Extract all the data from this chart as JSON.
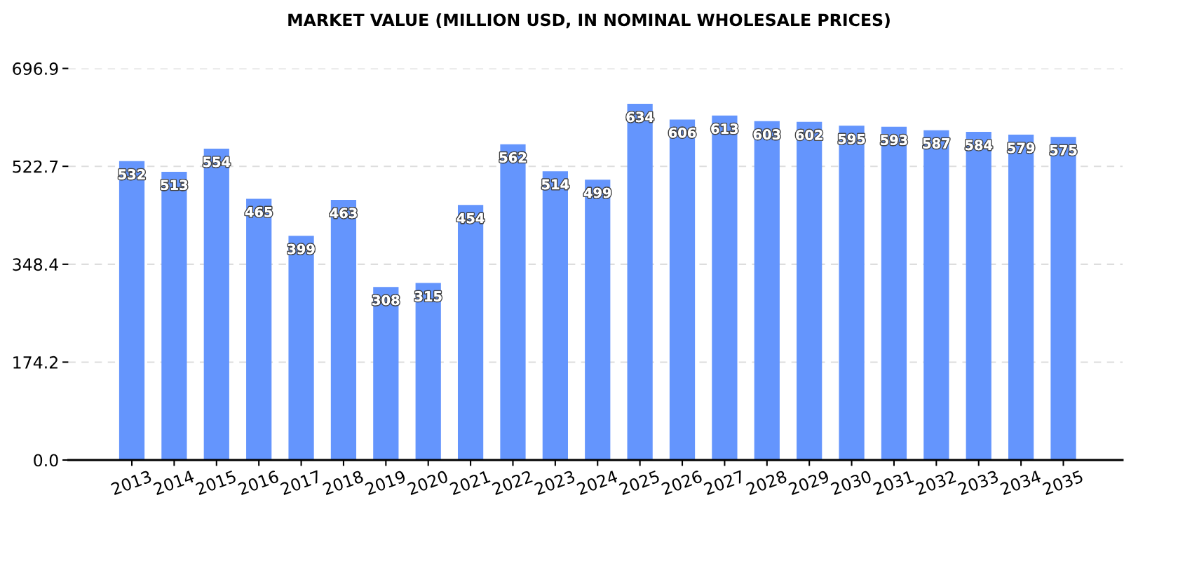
{
  "chart_data": {
    "type": "bar",
    "title": "MARKET VALUE (MILLION USD, IN NOMINAL WHOLESALE PRICES)",
    "categories": [
      "2013",
      "2014",
      "2015",
      "2016",
      "2017",
      "2018",
      "2019",
      "2020",
      "2021",
      "2022",
      "2023",
      "2024",
      "2025",
      "2026",
      "2027",
      "2028",
      "2029",
      "2030",
      "2031",
      "2032",
      "2033",
      "2034",
      "2035"
    ],
    "values": [
      532,
      513,
      554,
      465,
      399,
      463,
      308,
      315,
      454,
      562,
      514,
      499,
      634,
      606,
      613,
      603,
      602,
      595,
      593,
      587,
      584,
      579,
      575
    ],
    "color": "#6495fd",
    "ylim": [
      0,
      696.9
    ],
    "yticks": [
      {
        "value": 0,
        "label": "0.0"
      },
      174.2,
      348.4,
      522.7,
      696.9
    ],
    "grid": "y",
    "data_labels": true
  }
}
